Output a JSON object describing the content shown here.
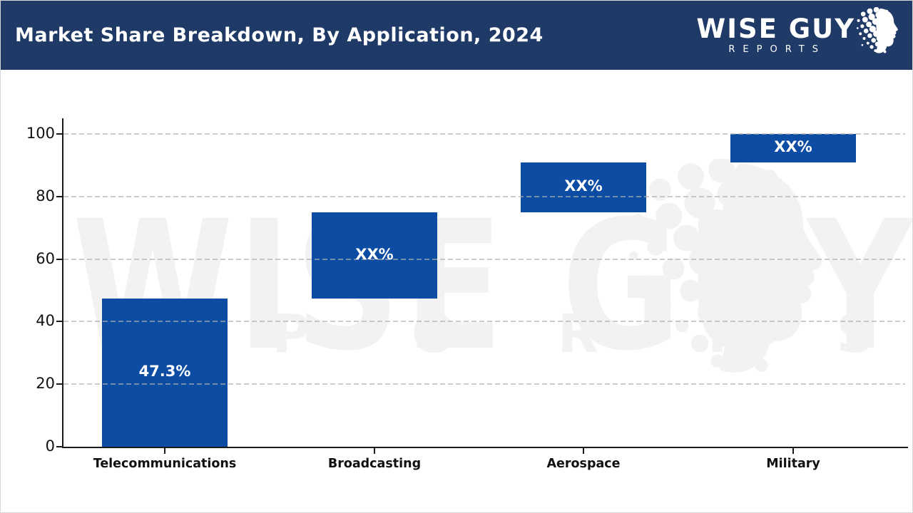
{
  "header": {
    "title": "Market Share Breakdown, By Application, 2024",
    "bg_color": "#1f3a66",
    "logo": {
      "line1": "WISE GUY",
      "line2": "REPORTS"
    }
  },
  "watermark": {
    "line1": "WISE GUY",
    "line2": "P O R T S"
  },
  "chart_data": {
    "type": "bar",
    "subtype": "waterfall",
    "title": "Market Share Breakdown, By Application, 2024",
    "xlabel": "",
    "ylabel": "",
    "categories": [
      "Telecommunications",
      "Broadcasting",
      "Aerospace",
      "Military"
    ],
    "bars": [
      {
        "category": "Telecommunications",
        "start": 0,
        "end": 47.3,
        "label": "47.3%"
      },
      {
        "category": "Broadcasting",
        "start": 47.3,
        "end": 75.0,
        "label": "XX%"
      },
      {
        "category": "Aerospace",
        "start": 75.0,
        "end": 90.8,
        "label": "XX%"
      },
      {
        "category": "Military",
        "start": 90.8,
        "end": 100.0,
        "label": "XX%"
      }
    ],
    "yticks": [
      0,
      20,
      40,
      60,
      80,
      100
    ],
    "ylim": [
      0,
      105
    ],
    "grid": "horizontal-dashed",
    "legend": "none",
    "bar_color": "#0c4ca3",
    "bar_label_color": "#ffffff",
    "axis_color": "#1a1a1a",
    "grid_color": "#d0d0d0"
  }
}
